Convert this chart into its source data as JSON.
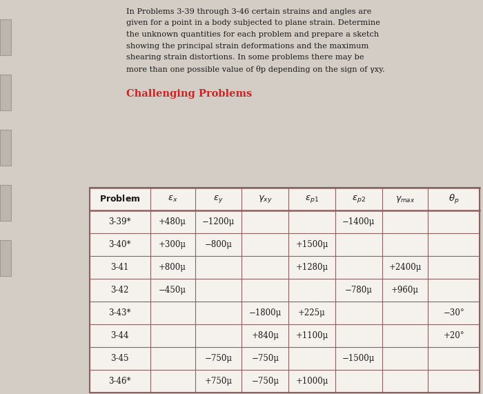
{
  "intro_text_lines": [
    "In Problems 3-39 through 3-46 certain strains and angles are",
    "given for a point in a body subjected to plane strain. Determine",
    "the unknown quantities for each problem and prepare a sketch",
    "showing the principal strain deformations and the maximum",
    "shearing strain distortions. In some problems there may be",
    "more than one possible value of θp depending on the sign of γxy."
  ],
  "section_title": "Challenging Problems",
  "rows": [
    [
      "3-39*",
      "+480μ",
      "−1200μ",
      "",
      "",
      "−1400μ",
      "",
      ""
    ],
    [
      "3-40*",
      "+300μ",
      "−800μ",
      "",
      "+1500μ",
      "",
      "",
      ""
    ],
    [
      "3-41",
      "+800μ",
      "",
      "",
      "+1280μ",
      "",
      "+2400μ",
      ""
    ],
    [
      "3-42",
      "−450μ",
      "",
      "",
      "",
      "−780μ",
      "+960μ",
      ""
    ],
    [
      "3-43*",
      "",
      "",
      "−1800μ",
      "+225μ",
      "",
      "",
      "−30°"
    ],
    [
      "3-44",
      "",
      "",
      "+840μ",
      "+1100μ",
      "",
      "",
      "+20°"
    ],
    [
      "3-45",
      "",
      "−750μ",
      "−750μ",
      "",
      "−1500μ",
      "",
      ""
    ],
    [
      "3-46*",
      "",
      "+750μ",
      "−750μ",
      "+1000μ",
      "",
      "",
      ""
    ]
  ],
  "bg_color": "#d4cdc6",
  "table_bg": "#f5f2ee",
  "line_color": "#8b6060",
  "text_color": "#1a1a1a",
  "title_color": "#cc2222",
  "page_tab_color": "#bdb6ae",
  "page_tab_border": "#a09890"
}
